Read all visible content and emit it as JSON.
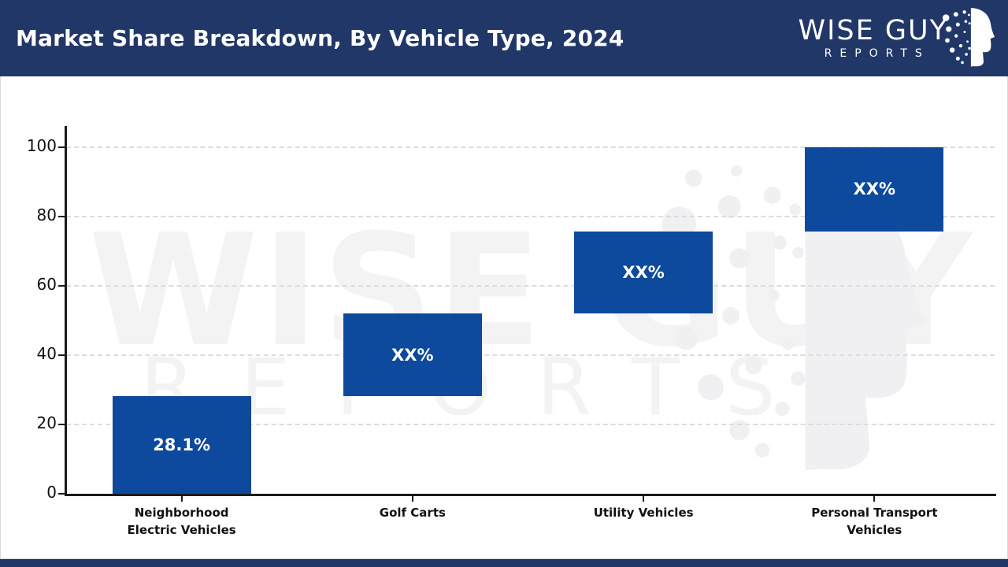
{
  "header": {
    "title": "Market Share Breakdown, By Vehicle Type, 2024",
    "logo": {
      "line1": "WISE GUY",
      "line2": "REPORTS",
      "icon": "head-profile-dots"
    }
  },
  "watermark": {
    "line1": "WISE GUY",
    "line2": "REPORTS"
  },
  "colors": {
    "header_navy": "#213768",
    "bar_blue": "#0d499c",
    "gridline_gray": "#dcdcdc",
    "watermark_gray": "#f3f3f4",
    "axis_black": "#1a1a1a",
    "label_white": "#ffffff"
  },
  "chart_data": {
    "type": "bar",
    "subtype": "floating-segment-bars",
    "title": "Market Share Breakdown, By Vehicle Type, 2024",
    "xlabel": "",
    "ylabel": "",
    "ylim": [
      0,
      100
    ],
    "yticks": [
      0,
      20,
      40,
      60,
      80,
      100
    ],
    "grid": "dashed-horizontal",
    "legend": "none",
    "bar_color": "#0d499c",
    "categories": [
      "Neighborhood\nElectric Vehicles",
      "Golf Carts",
      "Utility Vehicles",
      "Personal Transport\nVehicles"
    ],
    "bars": [
      {
        "category": "Neighborhood\nElectric Vehicles",
        "start": 0,
        "end": 28.1,
        "label": "28.1%"
      },
      {
        "category": "Golf Carts",
        "start": 28.1,
        "end": 52.0,
        "label": "XX%"
      },
      {
        "category": "Utility Vehicles",
        "start": 52.0,
        "end": 75.7,
        "label": "XX%"
      },
      {
        "category": "Personal Transport\nVehicles",
        "start": 75.7,
        "end": 100.0,
        "label": "XX%"
      }
    ]
  }
}
